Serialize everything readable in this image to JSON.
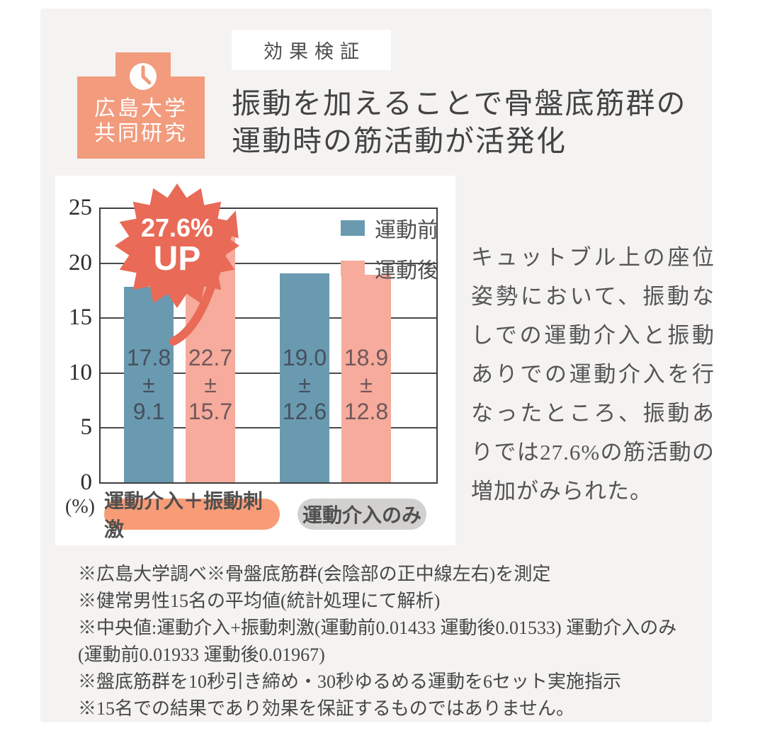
{
  "colors": {
    "page_bg": "#ffffff",
    "content_bg": "#f4f3f1",
    "badge_orange": "#f29b7d",
    "accent_red": "#e86a57",
    "bar_blue": "#6a9ab0",
    "bar_pink": "#f6ab9d",
    "pill_orange": "#f89c77",
    "pill_gray": "#d2d1cf"
  },
  "badge": {
    "line1": "広島大学",
    "line2": "共同研究"
  },
  "header": {
    "kicker": "効果検証",
    "title_line1": "振動を加えることで骨盤底筋群の",
    "title_line2": "運動時の筋活動が活発化"
  },
  "chart_data": {
    "type": "bar",
    "unit_label": "(%)",
    "ylim": [
      0,
      25
    ],
    "yticks": [
      25,
      20,
      15,
      10,
      5,
      0
    ],
    "grid": true,
    "legend_position": "top-right",
    "categories": [
      "運動介入＋振動刺激",
      "運動介入のみ"
    ],
    "series": [
      {
        "name": "運動前",
        "color": "#6a9ab0",
        "values": [
          17.8,
          19.0
        ],
        "sd": [
          9.1,
          12.6
        ]
      },
      {
        "name": "運動後",
        "color": "#f6ab9d",
        "values": [
          22.7,
          18.9
        ],
        "sd": [
          15.7,
          12.8
        ]
      }
    ],
    "bars": [
      {
        "group": 0,
        "series": "運動前",
        "value": 17.8,
        "label": "17.8",
        "pm": "±",
        "sd": "9.1",
        "color": "#6a9ab0",
        "label_color": "#45505e"
      },
      {
        "group": 0,
        "series": "運動後",
        "value": 22.7,
        "label": "22.7",
        "pm": "±",
        "sd": "15.7",
        "color": "#f6ab9d",
        "label_color": "#70585a"
      },
      {
        "group": 1,
        "series": "運動前",
        "value": 19.0,
        "label": "19.0",
        "pm": "±",
        "sd": "12.6",
        "color": "#6a9ab0",
        "label_color": "#45505e"
      },
      {
        "group": 1,
        "series": "運動後",
        "value": 18.9,
        "label": "18.9",
        "pm": "±",
        "sd": "12.8",
        "color": "#f6ab9d",
        "label_color": "#70585a"
      }
    ],
    "legend": [
      {
        "label": "運動前",
        "color": "#6a9ab0"
      },
      {
        "label": "運動後",
        "color": "#f6ab9d"
      }
    ],
    "annotation": {
      "percent": "27.6%",
      "word": "UP"
    },
    "category_pills": [
      {
        "label": "運動介入＋振動刺激",
        "bg": "#f89c77"
      },
      {
        "label": "運動介入のみ",
        "bg": "#d2d1cf"
      }
    ]
  },
  "aside": {
    "text": "キュットブル上の座位姿勢において、振動なしでの運動介入と振動ありでの運動介入を行なったところ、振動ありでは27.6%の筋活動の増加がみられた。"
  },
  "footnotes": [
    "※広島大学調べ※骨盤底筋群(会陰部の正中線左右)を測定",
    "※健常男性15名の平均値(統計処理にて解析)",
    "※中央値:運動介入+振動刺激(運動前0.01433 運動後0.01533)  運動介入のみ",
    "(運動前0.01933 運動後0.01967)",
    "※盤底筋群を10秒引き締め・30秒ゆるめる運動を6セット実施指示",
    "※15名での結果であり効果を保証するものではありません。"
  ]
}
